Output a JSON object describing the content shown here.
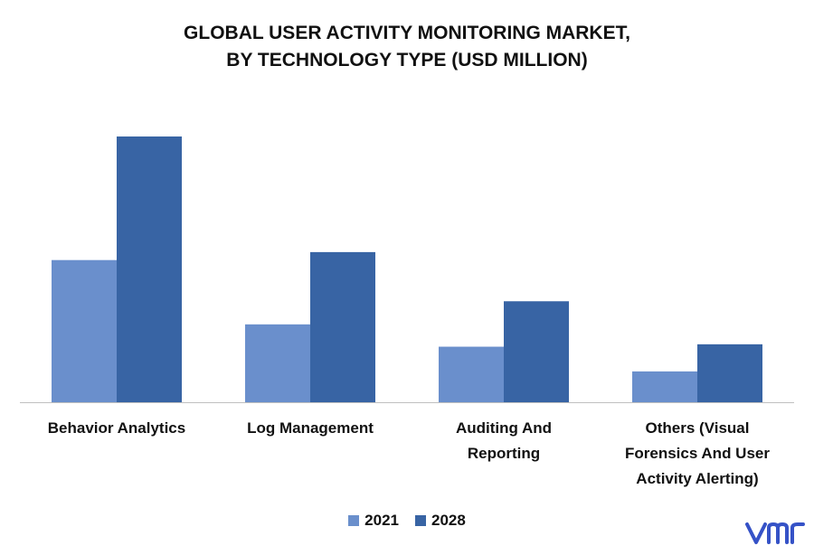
{
  "chart_data": {
    "type": "bar",
    "title_lines": [
      "GLOBAL USER ACTIVITY MONITORING MARKET,",
      "BY TECHNOLOGY TYPE (USD MILLION)"
    ],
    "categories": [
      [
        "Behavior Analytics"
      ],
      [
        "Log Management"
      ],
      [
        "Auditing And",
        "Reporting"
      ],
      [
        "Others (Visual",
        "Forensics And User",
        "Activity Alerting)"
      ]
    ],
    "series": [
      {
        "name": "2021",
        "color": "#6a8fcc",
        "values": [
          53.5,
          29.3,
          20.9,
          11.6
        ]
      },
      {
        "name": "2028",
        "color": "#3864a4",
        "values": [
          100,
          56.5,
          38.0,
          21.8
        ]
      }
    ],
    "ylim": [
      0,
      100
    ],
    "grid": false,
    "legend_position": "bottom"
  },
  "logo": {
    "text": "vmr",
    "color": "#3552c7"
  }
}
